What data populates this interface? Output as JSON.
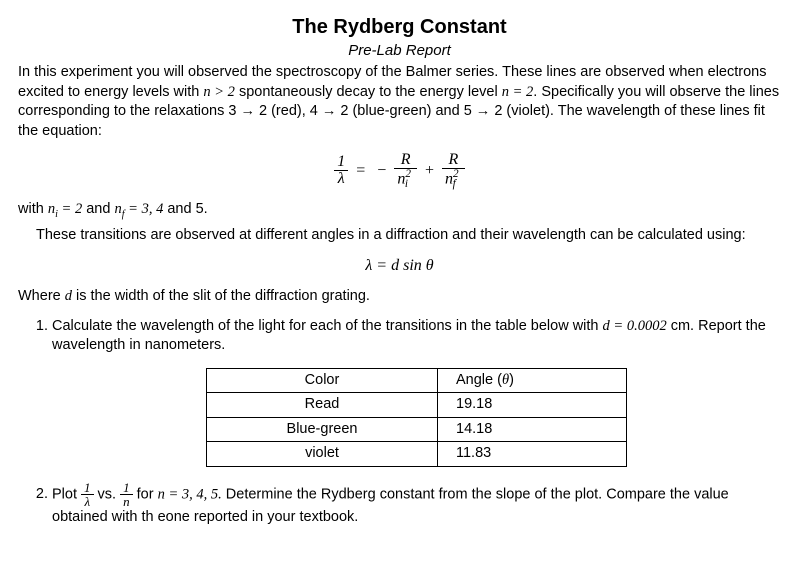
{
  "title": "The Rydberg Constant",
  "subtitle": "Pre-Lab Report",
  "intro": "In this experiment you will observed the spectroscopy of the Balmer series. These lines are observed when electrons excited to energy levels with ",
  "intro2": " spontaneously decay to the energy level ",
  "intro3": ". Specifically you will observe the lines corresponding to the relaxations 3 → 2 (red), 4 → 2 (blue-green) and 5 → 2 (violet). The wavelength of these lines fit the equation:",
  "n_gt_2": "n > 2",
  "n_eq_2": "n = 2",
  "eq1": {
    "left_num": "1",
    "left_den": "λ",
    "R": "R",
    "ni": "n",
    "ni_sub": "i",
    "nf": "n",
    "nf_sub": "f",
    "sq": "2"
  },
  "with_line": "with ",
  "ni_eq_2": "nᵢ = 2",
  "and": " and ",
  "nf_eq_345": "n_f = 3, 4 and 5.",
  "para2": "These transitions are observed at different angles in a diffraction and their wavelength can be calculated using:",
  "eq2": "λ = d sin θ",
  "where_line_a": "Where ",
  "where_d": "d",
  "where_line_b": " is the width of the slit of the diffraction grating.",
  "q1a": "Calculate the wavelength of the light for each of the transitions in the table below with ",
  "q1_d": "d = 0.0002",
  "q1b": " cm. Report the wavelength in nanometers.",
  "table": {
    "headers": [
      "Color",
      "Angle (θ)"
    ],
    "rows": [
      [
        "Read",
        "19.18"
      ],
      [
        "Blue-green",
        "14.18"
      ],
      [
        "violet",
        "11.83"
      ]
    ]
  },
  "q2a": "Plot ",
  "q2_frac1_num": "1",
  "q2_frac1_den": "λ",
  "q2b": " vs. ",
  "q2_frac2_num": "1",
  "q2_frac2_den": "n",
  "q2c": " for ",
  "q2_n": "n = 3, 4, 5.",
  "q2d": " Determine the Rydberg constant from the slope of the plot. Compare the value obtained with th eone reported in your textbook."
}
